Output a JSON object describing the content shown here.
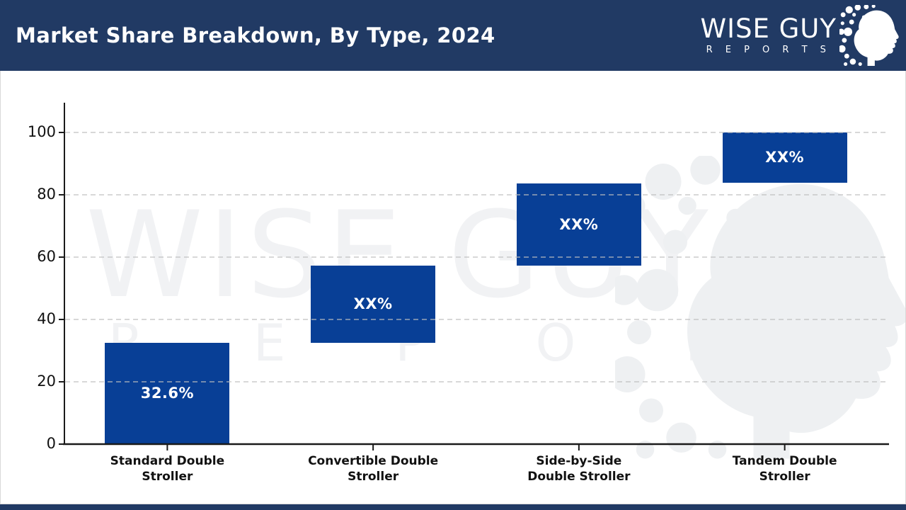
{
  "header": {
    "title": "Market Share Breakdown, By Type, 2024",
    "logo": {
      "line1": "WISE GUY",
      "line2": "R E P O R T S"
    }
  },
  "watermark": {
    "line1": "WISE GUY",
    "line2": "R E P O R T S"
  },
  "chart_data": {
    "type": "bar",
    "subtype": "floating-segment (waterfall style)",
    "title": "Market Share Breakdown, By Type, 2024",
    "categories": [
      "Standard Double\nStroller",
      "Convertible Double\nStroller",
      "Side-by-Side\nDouble Stroller",
      "Tandem Double\nStroller"
    ],
    "segments": [
      {
        "base": 0,
        "top": 32.6,
        "label": "32.6%"
      },
      {
        "base": 32.6,
        "top": 57.3,
        "label": "XX%"
      },
      {
        "base": 57.3,
        "top": 83.6,
        "label": "XX%"
      },
      {
        "base": 83.9,
        "top": 100,
        "label": "XX%"
      }
    ],
    "xlabel": "",
    "ylabel": "",
    "ylim": [
      0,
      100
    ],
    "yticks": [
      0,
      20,
      40,
      60,
      80,
      100
    ],
    "grid": "horizontal dashed gridlines drawn over bars",
    "legend": "none",
    "bar_color": "#083f96",
    "value_label_color": "#ffffff"
  },
  "colors": {
    "header_bg": "#213a64",
    "footer_bg": "#213a64",
    "bar": "#083f96",
    "axis": "#1a1a1a",
    "grid": "#c9c9c9",
    "watermark": "#f1f2f4",
    "tick_text": "#111111"
  }
}
